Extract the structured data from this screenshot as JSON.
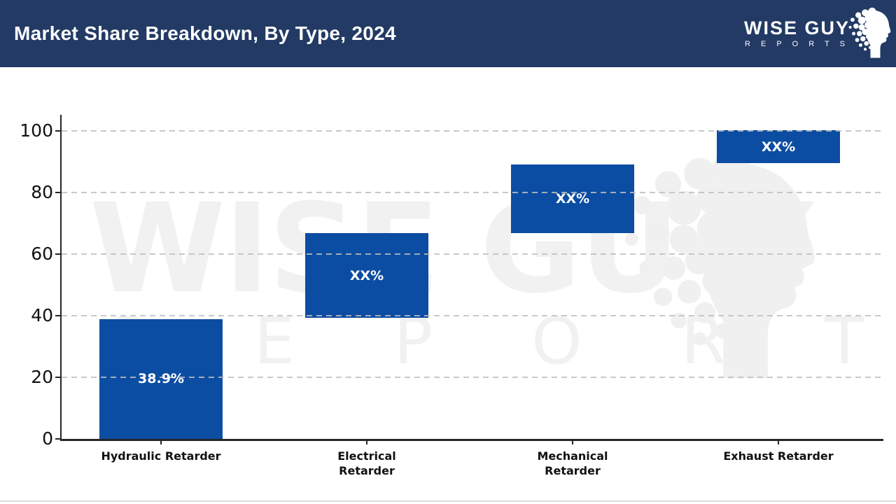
{
  "header": {
    "title": "Market Share Breakdown, By Type, 2024",
    "logo": {
      "line1": "WISE GUY",
      "line2": "R E P O R T S"
    }
  },
  "watermark": {
    "line1": "WISE GU·Y",
    "line2": "R E P O R T S"
  },
  "colors": {
    "header_bg": "#223A64",
    "bar_blue": "#0B4DA2",
    "watermark_gray": "#F1F1F1",
    "grid_gray": "#C9C9C9",
    "axis_dark": "#262626",
    "bar_label_white": "#FFFFFF"
  },
  "chart_data": {
    "type": "bar",
    "subtype": "waterfall-stacked-percent",
    "title": "Market Share Breakdown, By Type, 2024",
    "categories": [
      "Hydraulic Retarder",
      "Electrical\nRetarder",
      "Mechanical\nRetarder",
      "Exhaust Retarder"
    ],
    "segments": [
      {
        "category": "Hydraulic Retarder",
        "start": 0,
        "end": 38.9,
        "label": "38.9%"
      },
      {
        "category": "Electrical Retarder",
        "start": 39.3,
        "end": 66.8,
        "label": "XX%"
      },
      {
        "category": "Mechanical Retarder",
        "start": 66.8,
        "end": 89.2,
        "label": "XX%"
      },
      {
        "category": "Exhaust Retarder",
        "start": 89.5,
        "end": 100.2,
        "label": "XX%"
      }
    ],
    "yticks": [
      0,
      20,
      40,
      60,
      80,
      100
    ],
    "ylim": [
      0,
      105
    ],
    "xlabel": "",
    "ylabel": "",
    "grid": "horizontal-dashed-over-bars",
    "legend": "none",
    "bar_color": "#0B4DA2",
    "label_color": "#FFFFFF"
  }
}
